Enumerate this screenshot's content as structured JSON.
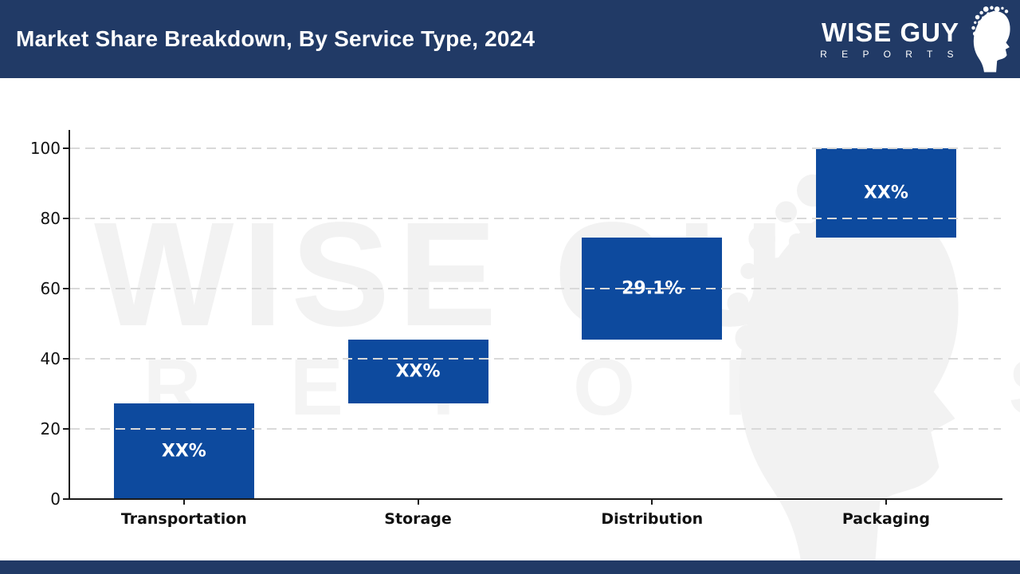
{
  "header": {
    "title": "Market Share Breakdown, By Service Type, 2024",
    "logo": {
      "line1": "WISE GUY",
      "line2": "R E P O R T S"
    }
  },
  "watermark": {
    "line1": "WISE GUY",
    "line2": "R E P O R T S"
  },
  "chart_data": {
    "type": "bar",
    "subtype": "floating-waterfall",
    "title": "Market Share Breakdown, By Service Type, 2024",
    "categories": [
      "Transportation",
      "Storage",
      "Distribution",
      "Packaging"
    ],
    "segments": [
      {
        "category": "Transportation",
        "start": 0,
        "end": 27.3,
        "label": "XX%"
      },
      {
        "category": "Storage",
        "start": 27.3,
        "end": 45.5,
        "label": "XX%"
      },
      {
        "category": "Distribution",
        "start": 45.5,
        "end": 74.6,
        "label": "29.1%"
      },
      {
        "category": "Packaging",
        "start": 74.6,
        "end": 100,
        "label": "XX%"
      }
    ],
    "values": [
      27.3,
      18.2,
      29.1,
      25.4
    ],
    "y_ticks": [
      0,
      20,
      40,
      60,
      80,
      100
    ],
    "ylim": [
      0,
      105
    ],
    "xlabel": "",
    "ylabel": "",
    "grid": "dashed-horizontal-over-bars",
    "legend": "none",
    "bar_color": "#0d4a9e",
    "bar_label_color": "#ffffff",
    "axis_color": "#1a1a1a",
    "gridline_color": "#d9d9d9",
    "header_color": "#213a66",
    "watermark_color": "#f2f2f2"
  }
}
